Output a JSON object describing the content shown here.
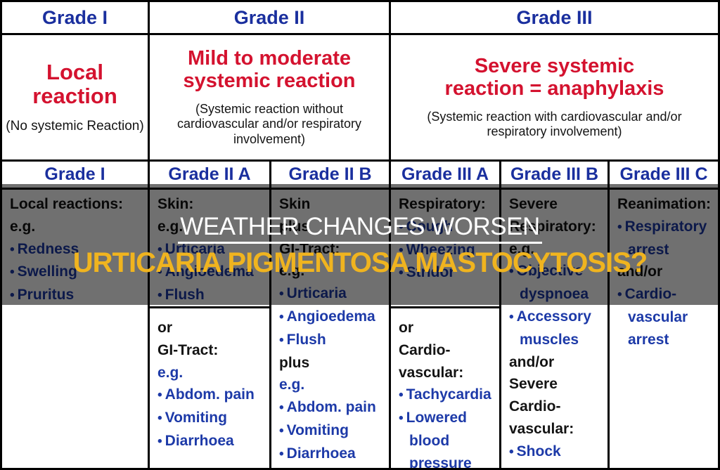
{
  "colors": {
    "grade_header_blue": "#1a2f9e",
    "headline_red": "#d4122f",
    "bullet_blue": "#1d3aa8",
    "body_black": "#141414",
    "border_black": "#000000",
    "overlay_grey": "rgba(0,0,0,0.56)",
    "title_white": "#ffffff",
    "title_yellow": "#f0b41f"
  },
  "overlay_title": {
    "line1": "WEATHER CHANGES WORSEN",
    "line2": "URTICARIA PIGMENTOSA MASTOCYTOSIS?"
  },
  "grade_summary": {
    "columns": [
      {
        "grade": "Grade I",
        "headline_line1": "Local reaction",
        "headline_line2": "",
        "description": "(No systemic Reaction)"
      },
      {
        "grade": "Grade II",
        "headline_line1": "Mild to moderate",
        "headline_line2": "systemic reaction",
        "description": "(Systemic reaction without cardiovascular and/or respiratory involvement)"
      },
      {
        "grade": "Grade III",
        "headline_line1": "Severe systemic",
        "headline_line2": "reaction = anaphylaxis",
        "description": "(Systemic reaction with cardiovascular and/or respiratory involvement)"
      }
    ]
  },
  "grade_detail": {
    "headers": [
      "Grade I",
      "Grade II A",
      "Grade II B",
      "Grade III A",
      "Grade III B",
      "Grade III C"
    ],
    "columns": [
      {
        "sections": [
          {
            "lines": [
              {
                "t": "Local reactions:",
                "c": "black"
              },
              {
                "t": "e.g.",
                "c": "black"
              },
              {
                "t": "Redness",
                "c": "blue",
                "bullet": true
              },
              {
                "t": "Swelling",
                "c": "blue",
                "bullet": true
              },
              {
                "t": "Pruritus",
                "c": "blue",
                "bullet": true
              }
            ]
          }
        ]
      },
      {
        "sections": [
          {
            "lines": [
              {
                "t": "Skin:",
                "c": "black"
              },
              {
                "t": "e.g.",
                "c": "black"
              },
              {
                "t": "Urticaria",
                "c": "blue",
                "bullet": true
              },
              {
                "t": "Angioedema",
                "c": "blue",
                "bullet": true
              },
              {
                "t": "Flush",
                "c": "blue",
                "bullet": true
              }
            ]
          },
          {
            "lines": [
              {
                "t": "or",
                "c": "black"
              },
              {
                "t": "GI-Tract:",
                "c": "black"
              },
              {
                "t": "e.g.",
                "c": "blue"
              },
              {
                "t": "Abdom. pain",
                "c": "blue",
                "bullet": true
              },
              {
                "t": "Vomiting",
                "c": "blue",
                "bullet": true
              },
              {
                "t": "Diarrhoea",
                "c": "blue",
                "bullet": true
              }
            ]
          }
        ]
      },
      {
        "sections": [
          {
            "lines": [
              {
                "t": "Skin",
                "c": "black"
              },
              {
                "t": "plus",
                "c": "black"
              },
              {
                "t": "GI-Tract:",
                "c": "black"
              },
              {
                "t": "e.g.",
                "c": "black"
              },
              {
                "t": "Urticaria",
                "c": "blue",
                "bullet": true
              },
              {
                "t": "Angioedema",
                "c": "blue",
                "bullet": true
              },
              {
                "t": "Flush",
                "c": "blue",
                "bullet": true
              },
              {
                "t": "plus",
                "c": "black"
              },
              {
                "t": "e.g.",
                "c": "blue"
              },
              {
                "t": "Abdom. pain",
                "c": "blue",
                "bullet": true
              },
              {
                "t": "Vomiting",
                "c": "blue",
                "bullet": true
              },
              {
                "t": "Diarrhoea",
                "c": "blue",
                "bullet": true
              }
            ]
          }
        ]
      },
      {
        "sections": [
          {
            "lines": [
              {
                "t": "Respiratory:",
                "c": "black"
              },
              {
                "t": "Cough",
                "c": "blue",
                "bullet": true
              },
              {
                "t": "Wheezing",
                "c": "blue",
                "bullet": true
              },
              {
                "t": "Stridor",
                "c": "blue",
                "bullet": true
              }
            ]
          },
          {
            "lines": [
              {
                "t": "or",
                "c": "black"
              },
              {
                "t": "Cardio-",
                "c": "black"
              },
              {
                "t": "vascular:",
                "c": "black"
              },
              {
                "t": "Tachycardia",
                "c": "blue",
                "bullet": true
              },
              {
                "t": "Lowered",
                "c": "blue",
                "bullet": true
              },
              {
                "t": "blood",
                "c": "blue",
                "indent": true
              },
              {
                "t": "pressure",
                "c": "blue",
                "indent": true
              }
            ]
          }
        ]
      },
      {
        "sections": [
          {
            "lines": [
              {
                "t": "Severe",
                "c": "black"
              },
              {
                "t": "Respiratory:",
                "c": "black"
              },
              {
                "t": "e.g.",
                "c": "black"
              },
              {
                "t": "Objective",
                "c": "blue",
                "bullet": true
              },
              {
                "t": "dyspnoea",
                "c": "blue",
                "indent": true
              },
              {
                "t": "Accessory",
                "c": "blue",
                "bullet": true
              },
              {
                "t": "muscles",
                "c": "blue",
                "indent": true
              },
              {
                "t": "and/or",
                "c": "black"
              },
              {
                "t": "Severe",
                "c": "black"
              },
              {
                "t": "Cardio-",
                "c": "black"
              },
              {
                "t": "vascular:",
                "c": "black"
              },
              {
                "t": "Shock",
                "c": "blue",
                "bullet": true
              }
            ]
          }
        ]
      },
      {
        "sections": [
          {
            "lines": [
              {
                "t": "Reanimation:",
                "c": "black"
              },
              {
                "t": "Respiratory",
                "c": "blue",
                "bullet": true
              },
              {
                "t": "arrest",
                "c": "blue",
                "indent": true
              },
              {
                "t": "and/or",
                "c": "black"
              },
              {
                "t": "Cardio-",
                "c": "blue",
                "bullet": true
              },
              {
                "t": "vascular",
                "c": "blue",
                "indent": true
              },
              {
                "t": "arrest",
                "c": "blue",
                "indent": true
              }
            ]
          }
        ]
      }
    ]
  }
}
